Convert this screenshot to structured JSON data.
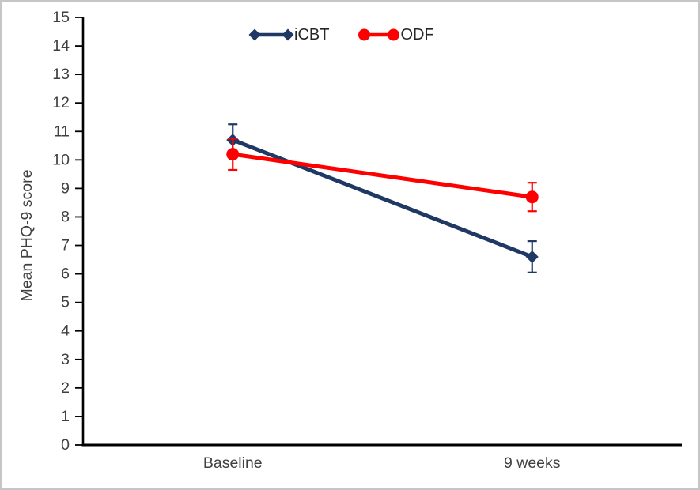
{
  "chart_data": {
    "type": "line",
    "title": "",
    "categories": [
      "Baseline",
      "9 weeks"
    ],
    "series": [
      {
        "name": "iCBT",
        "color": "#1F3864",
        "marker": "diamond",
        "values": [
          10.7,
          6.6
        ],
        "error": [
          0.55,
          0.55
        ]
      },
      {
        "name": "ODF",
        "color": "#FF0000",
        "marker": "circle",
        "values": [
          10.2,
          8.7
        ],
        "error": [
          0.55,
          0.5
        ]
      }
    ],
    "xlabel": "",
    "ylabel": "Mean PHQ-9 score",
    "ylim": [
      0,
      15
    ],
    "ytick_step": 1,
    "yticks": [
      0,
      1,
      2,
      3,
      4,
      5,
      6,
      7,
      8,
      9,
      10,
      11,
      12,
      13,
      14,
      15
    ],
    "grid": false,
    "legend_position": "top-center",
    "error_bars": true
  },
  "colors": {
    "axis_line": "#000000",
    "tick_label": "#404040",
    "legend_text": "#262626",
    "frame_border": "#C6C6C6",
    "background": "#FFFFFF"
  }
}
